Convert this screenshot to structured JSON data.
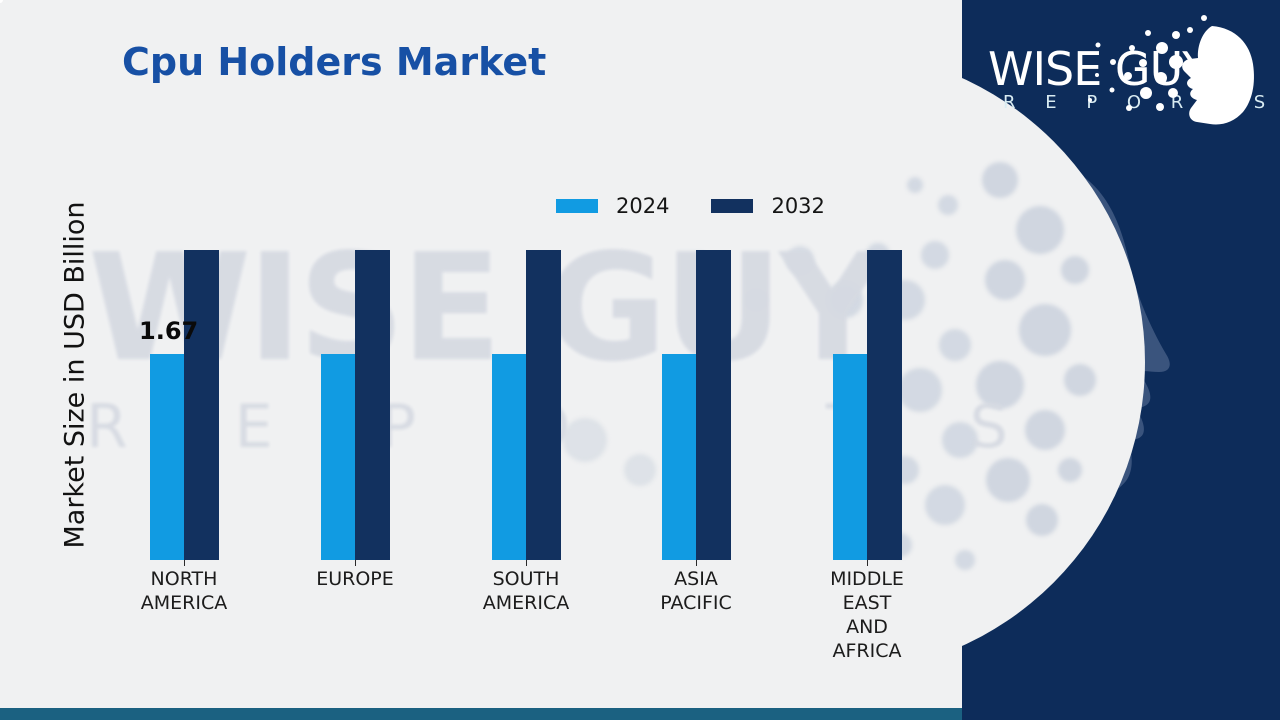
{
  "page": {
    "background_color": "#f0f1f2",
    "bottom_strip_color": "#1b6181",
    "right_panel_color": "#0d2c5a"
  },
  "header": {
    "title": "Cpu Holders Market",
    "title_color": "#1750a5"
  },
  "brand_logo": {
    "name": "WISE GUY REPORTS",
    "line1": "WISE GUY",
    "line2": "R E P O R T S"
  },
  "watermark": {
    "line1": "WISE GUY",
    "line2": "R E P O R T S"
  },
  "chart": {
    "y_axis_label": "Market Size in USD Billion",
    "legend": [
      {
        "label": "2024",
        "color": "#119be2"
      },
      {
        "label": "2032",
        "color": "#12315f"
      }
    ],
    "categories_display": [
      "NORTH\nAMERICA",
      "EUROPE",
      "SOUTH\nAMERICA",
      "ASIA\nPACIFIC",
      "MIDDLE\nEAST\nAND\nAFRICA"
    ]
  },
  "chart_data": {
    "type": "bar",
    "title": "Cpu Holders Market",
    "xlabel": "",
    "ylabel": "Market Size in USD Billion",
    "categories": [
      "NORTH AMERICA",
      "EUROPE",
      "SOUTH AMERICA",
      "ASIA PACIFIC",
      "MIDDLE EAST AND AFRICA"
    ],
    "series": [
      {
        "name": "2024",
        "color": "#119be2",
        "values": [
          1.67,
          1.67,
          1.67,
          1.67,
          1.67
        ]
      },
      {
        "name": "2032",
        "color": "#12315f",
        "values": [
          2.51,
          2.51,
          2.51,
          2.51,
          2.51
        ]
      }
    ],
    "ylim": [
      0,
      3
    ],
    "grid": false,
    "legend_position": "top-center",
    "annotation": {
      "text": "1.67",
      "target": "NORTH AMERICA 2024 bar"
    }
  }
}
